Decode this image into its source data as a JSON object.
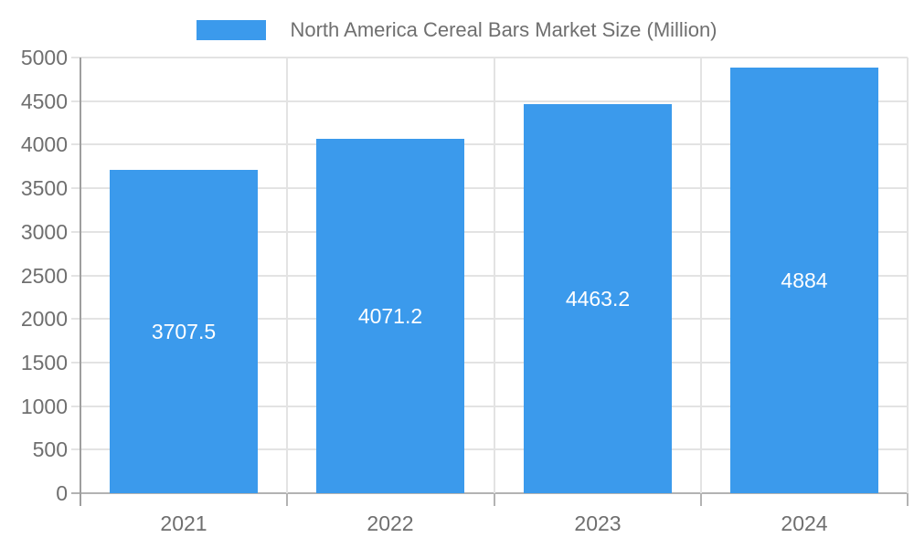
{
  "legend": {
    "label": "North America Cereal Bars Market Size (Million)"
  },
  "chart_data": {
    "type": "bar",
    "title": "North America Cereal Bars Market Size (Million)",
    "categories": [
      "2021",
      "2022",
      "2023",
      "2024"
    ],
    "values": [
      3707.5,
      4071.2,
      4463.2,
      4884
    ],
    "data_labels": [
      "3707.5",
      "4071.2",
      "4463.2",
      "4884"
    ],
    "xlabel": "",
    "ylabel": "",
    "ylim": [
      0,
      5000
    ],
    "ytick_step": 500,
    "ytick_labels": [
      "0",
      "500",
      "1000",
      "1500",
      "2000",
      "2500",
      "3000",
      "3500",
      "4000",
      "4500",
      "5000"
    ],
    "grid": true,
    "legend_position": "top",
    "colors": {
      "bar": "#3b9aec",
      "data_label_text": "#ffffff",
      "axis_text": "#6f6f6f",
      "gridline": "#e3e3e3",
      "y_axis_line": "#9e9e9e",
      "x_axis_line": "#b3b3b3",
      "background": "#ffffff"
    }
  }
}
